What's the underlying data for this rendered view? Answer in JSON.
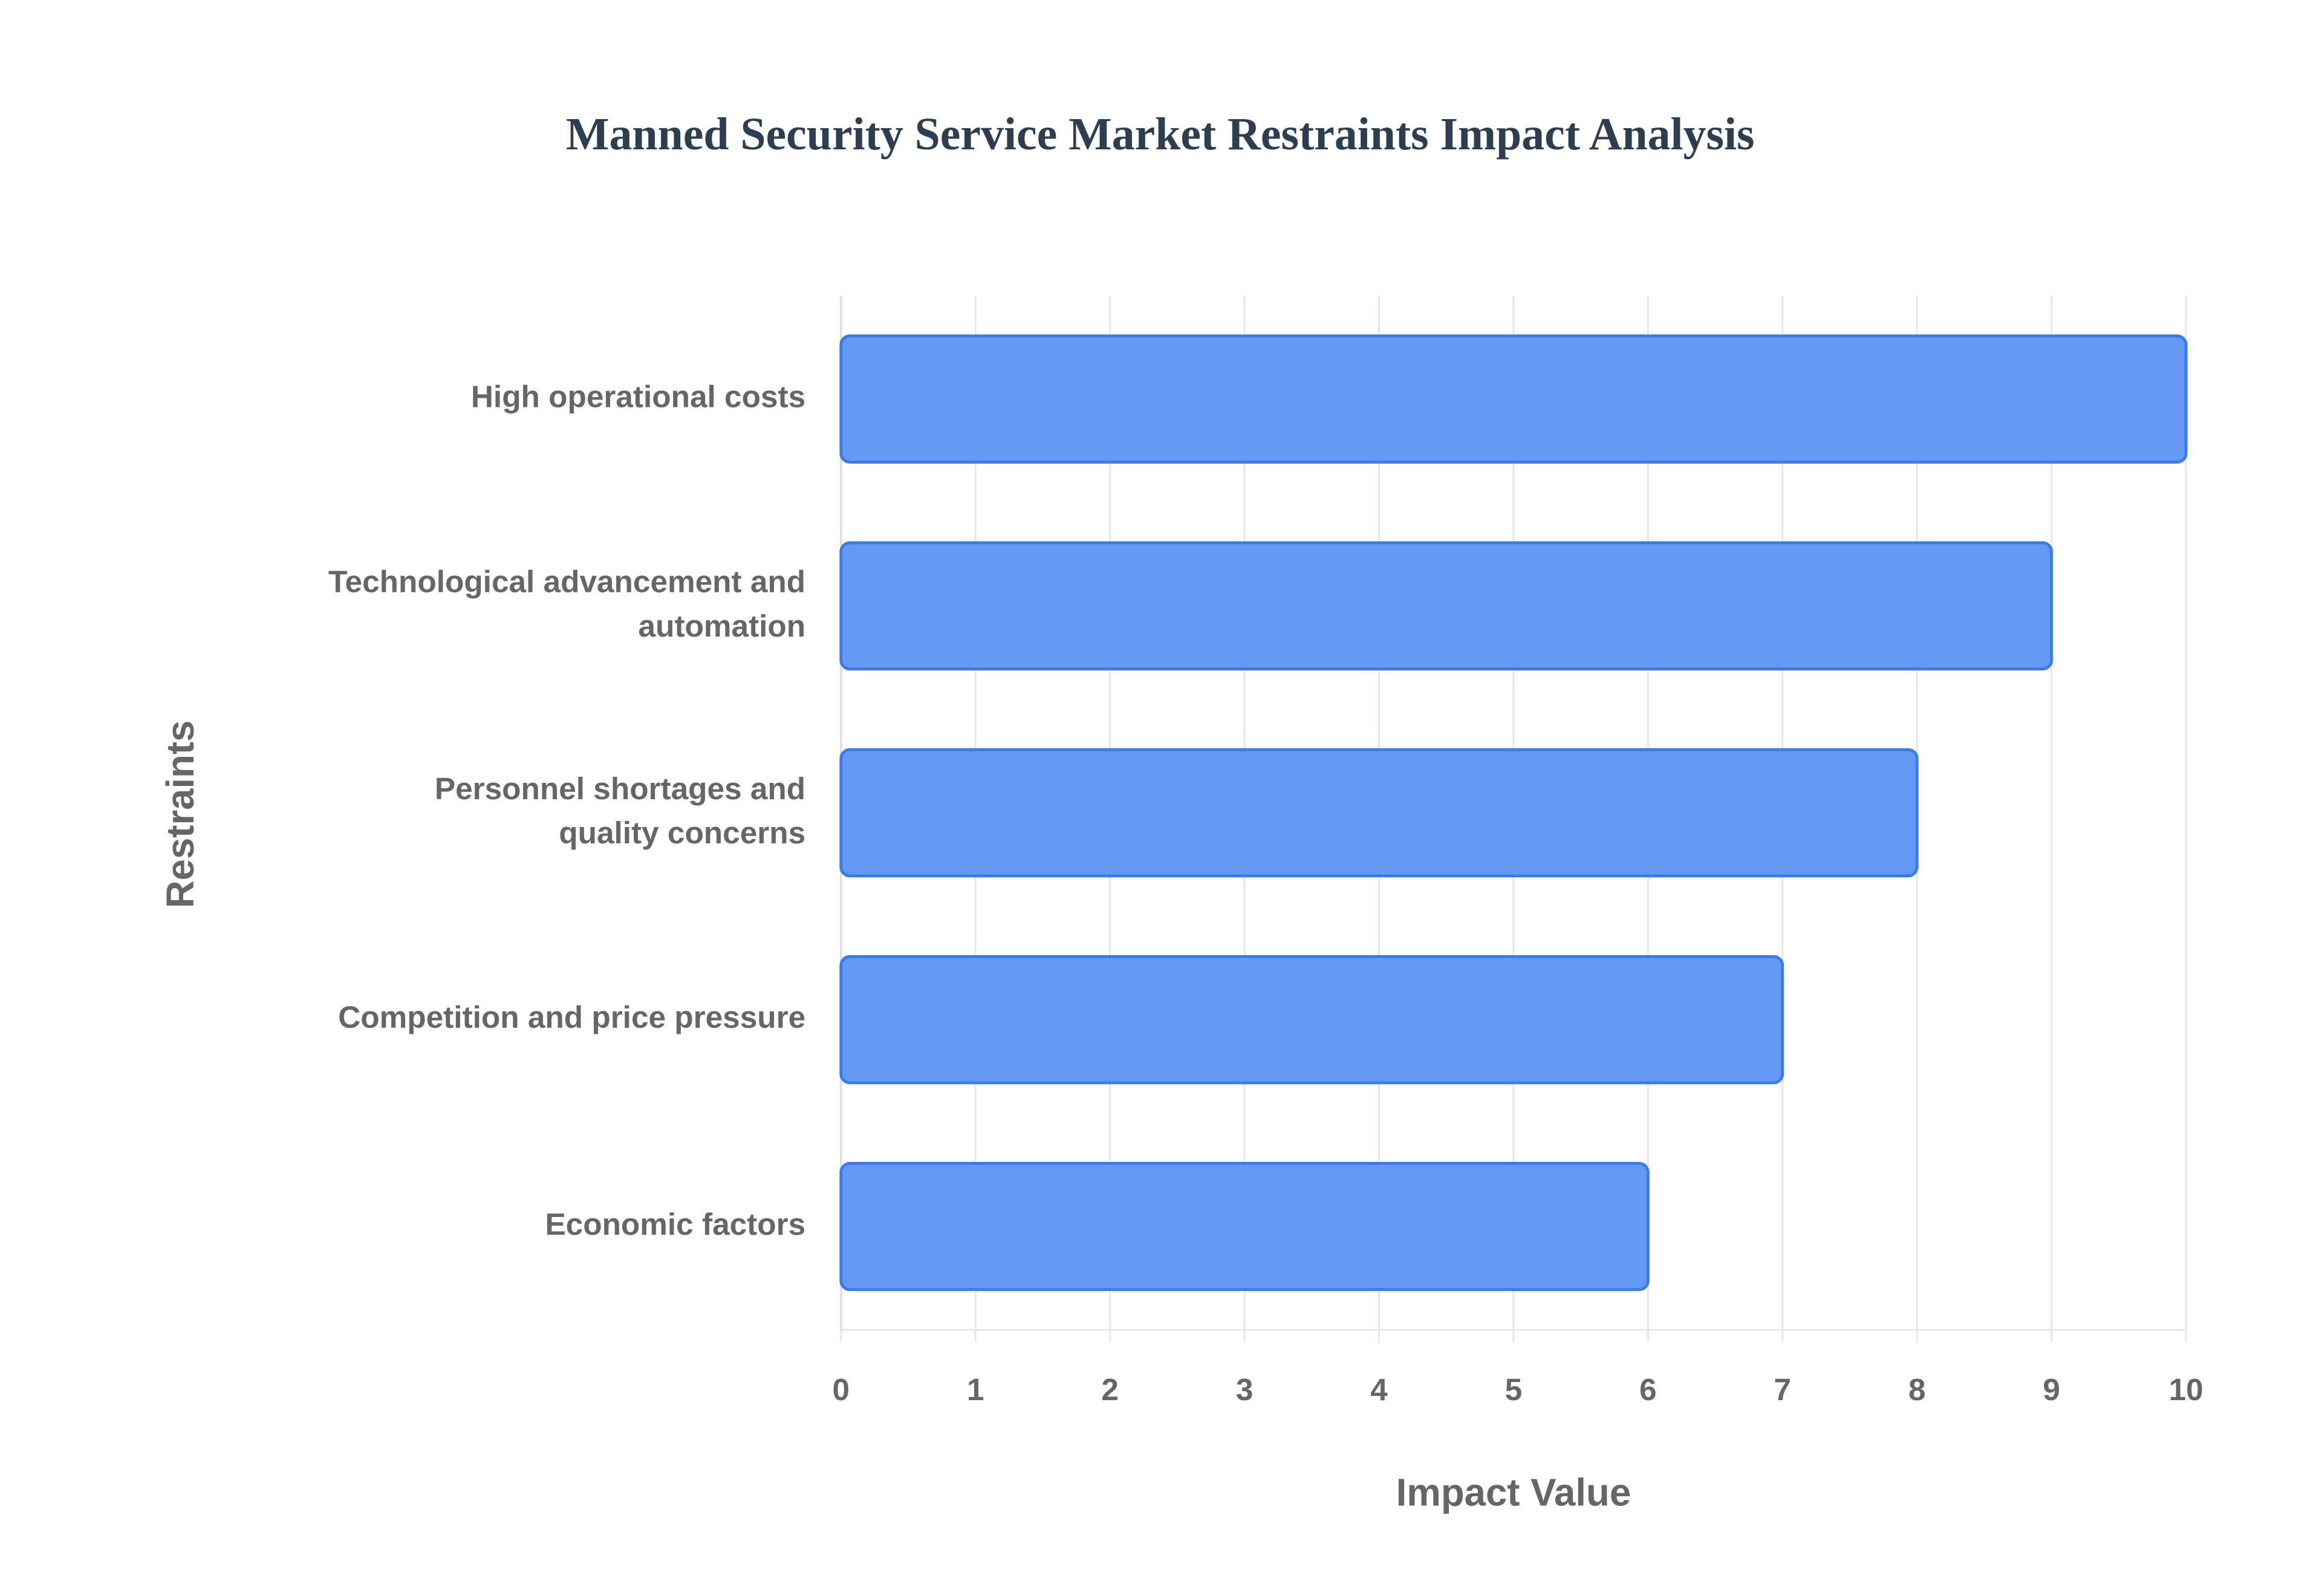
{
  "chart_data": {
    "type": "hbar",
    "title": "Manned Security Service Market Restraints Impact Analysis",
    "x_label": "Impact Value",
    "y_label": "Restraints",
    "categories": [
      "High operational costs",
      "Technological advancement and automation",
      "Personnel shortages and quality concerns",
      "Competition and price pressure",
      "Economic factors"
    ],
    "values": [
      10,
      9,
      8,
      7,
      6
    ],
    "color": "#6399f5",
    "edge_color": "#3b7be8",
    "xlim": [
      0,
      10
    ],
    "xticks": [
      0,
      1,
      2,
      3,
      4,
      5,
      6,
      7,
      8,
      9,
      10
    ],
    "grid": true
  }
}
